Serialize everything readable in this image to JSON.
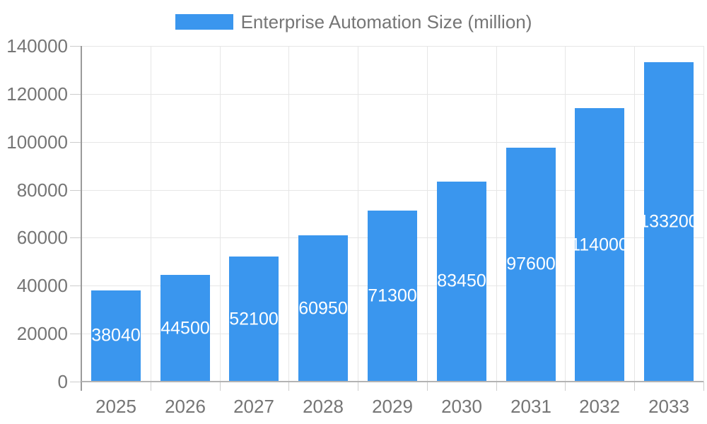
{
  "chart_data": {
    "type": "bar",
    "title": "Enterprise Automation Size (million)",
    "xlabel": "",
    "ylabel": "",
    "categories": [
      "2025",
      "2026",
      "2027",
      "2028",
      "2029",
      "2030",
      "2031",
      "2032",
      "2033"
    ],
    "values": [
      38040,
      44500,
      52100,
      60950,
      71300,
      83450,
      97600,
      114000,
      133200
    ],
    "value_labels": [
      "38040",
      "44500",
      "52100",
      "60950",
      "71300",
      "83450",
      "97600",
      "114000",
      "133200"
    ],
    "ylim": [
      0,
      140000
    ],
    "y_ticks": [
      0,
      20000,
      40000,
      60000,
      80000,
      100000,
      120000,
      140000
    ],
    "y_tick_labels": [
      "0",
      "20000",
      "40000",
      "60000",
      "80000",
      "100000",
      "120000",
      "140000"
    ],
    "grid": true,
    "legend_position": "top-center"
  },
  "legend": {
    "label": "Enterprise Automation Size (million)",
    "swatch_icon": "series-color-swatch"
  },
  "colors": {
    "bar": "#3A96EE",
    "axis_text": "#757575",
    "bar_label_text": "#ffffff",
    "gridline": "#e6e6e6",
    "axis_line": "#9b9b9b",
    "baseline": "#b3b3b3",
    "tick": "#cccccc",
    "background": "#ffffff"
  }
}
